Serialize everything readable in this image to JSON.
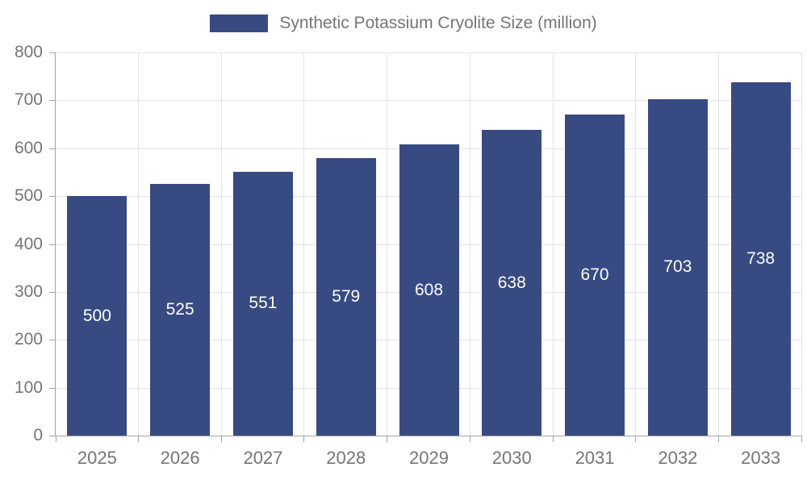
{
  "chart_data": {
    "type": "bar",
    "title": "Synthetic Potassium Cryolite Size (million)",
    "legend_entries": [
      "Synthetic Potassium Cryolite Size (million)"
    ],
    "categories": [
      "2025",
      "2026",
      "2027",
      "2028",
      "2029",
      "2030",
      "2031",
      "2032",
      "2033"
    ],
    "values": [
      500,
      525,
      551,
      579,
      608,
      638,
      670,
      703,
      738
    ],
    "xlabel": "",
    "ylabel": "",
    "ylim": [
      0,
      800
    ],
    "ytick_step": 100,
    "grid": true,
    "legend_position": "top",
    "value_labels_position": "inside-center",
    "colors": {
      "bar": "#374a82",
      "grid_line": "#e3e3e3",
      "axis_line": "#a3a3a3",
      "tick_text": "#757575",
      "value_label_text": "#ffffff",
      "background": "#ffffff"
    }
  }
}
